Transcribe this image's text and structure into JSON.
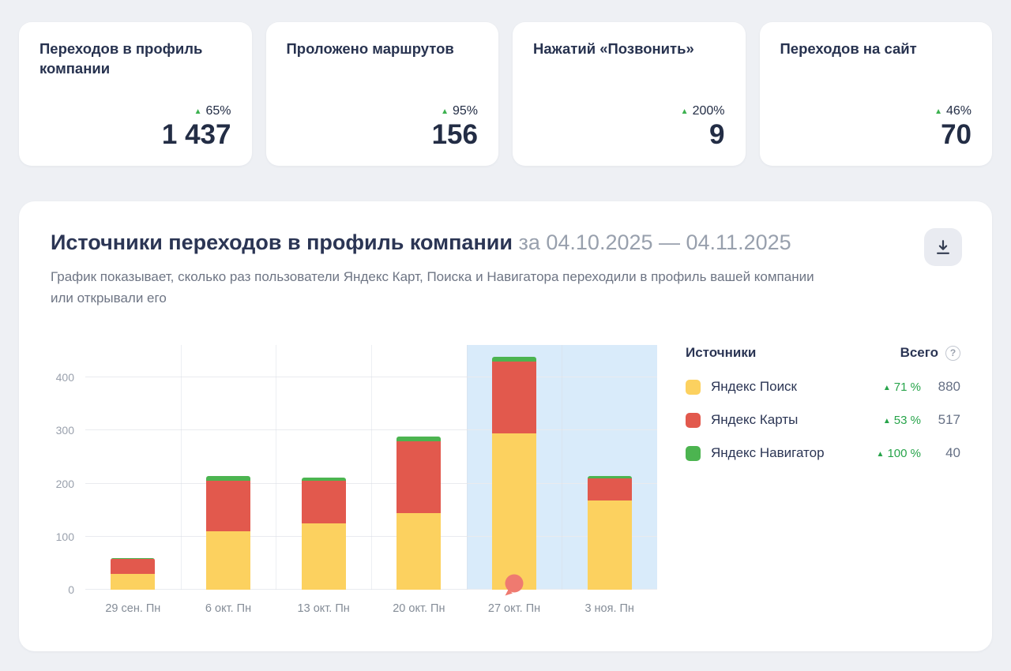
{
  "stat_cards": [
    {
      "title": "Переходов в профиль компании",
      "delta": "65%",
      "value": "1 437"
    },
    {
      "title": "Проложено маршрутов",
      "delta": "95%",
      "value": "156"
    },
    {
      "title": "Нажатий «Позвонить»",
      "delta": "200%",
      "value": "9"
    },
    {
      "title": "Переходов на сайт",
      "delta": "46%",
      "value": "70"
    }
  ],
  "main": {
    "title": "Источники переходов в профиль компании",
    "period": "за 04.10.2025 — 04.11.2025",
    "subtitle": "График показывает, сколько раз пользователи Яндекс Карт, Поиска и Навигатора переходили в профиль вашей компании или открывали его",
    "legend": {
      "header_sources": "Источники",
      "header_total": "Всего",
      "help_glyph": "?",
      "items": [
        {
          "label": "Яндекс Поиск",
          "color": "#fcd15f",
          "delta": "71 %",
          "total": "880"
        },
        {
          "label": "Яндекс Карты",
          "color": "#e2594d",
          "delta": "53 %",
          "total": "517"
        },
        {
          "label": "Яндекс Навигатор",
          "color": "#4cb450",
          "delta": "100 %",
          "total": "40"
        }
      ]
    }
  },
  "chart_data": {
    "type": "bar",
    "stacked": true,
    "title": "Источники переходов в профиль компании за 04.10.2025 — 04.11.2025",
    "categories": [
      "29 сен. Пн",
      "6 окт. Пн",
      "13 окт. Пн",
      "20 окт. Пн",
      "27 окт. Пн",
      "3 ноя. Пн"
    ],
    "series": [
      {
        "name": "Яндекс Поиск",
        "color": "#fcd15f",
        "values": [
          30,
          110,
          125,
          145,
          295,
          168
        ]
      },
      {
        "name": "Яндекс Карты",
        "color": "#e2594d",
        "values": [
          28,
          95,
          80,
          135,
          135,
          42
        ]
      },
      {
        "name": "Яндекс Навигатор",
        "color": "#4cb450",
        "values": [
          2,
          10,
          7,
          8,
          9,
          5
        ]
      }
    ],
    "yticks": [
      0,
      100,
      200,
      300,
      400
    ],
    "ylim": [
      0,
      460
    ],
    "grid": true,
    "legend_position": "right",
    "highlight": {
      "from_index": 4,
      "to_index": 5,
      "color": "#d9ebfa",
      "marker_category_index": 4,
      "marker_color": "#ef7a70"
    }
  },
  "icons": {
    "download": "download-icon",
    "up_triangle": "▲"
  },
  "colors": {
    "page_bg": "#eef0f4",
    "card_bg": "#ffffff",
    "title_dark": "#2b3554",
    "gray_text": "#98a0ad",
    "green": "#3cb14f"
  }
}
